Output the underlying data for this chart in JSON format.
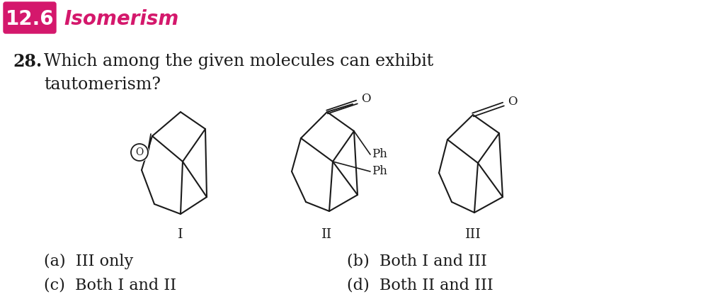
{
  "background_color": "#ffffff",
  "header_box_color": "#d4186c",
  "header_box_text": "12.6",
  "header_text": "Isomerism",
  "header_text_color": "#d4186c",
  "question_number": "28.",
  "question_line1": "Which among the given molecules can exhibit",
  "question_line2": "tautomerism?",
  "molecule_labels": [
    "I",
    "II",
    "III"
  ],
  "options": [
    [
      "(a)  III only",
      "(b)  Both I and III"
    ],
    [
      "(c)  Both I and II",
      "(d)  Both II and III"
    ]
  ],
  "text_color": "#1a1a1a",
  "mol_line_color": "#1a1a1a",
  "font_size_header": 20,
  "font_size_question": 17,
  "font_size_options": 16,
  "font_size_mol_label": 14,
  "lw": 1.5
}
